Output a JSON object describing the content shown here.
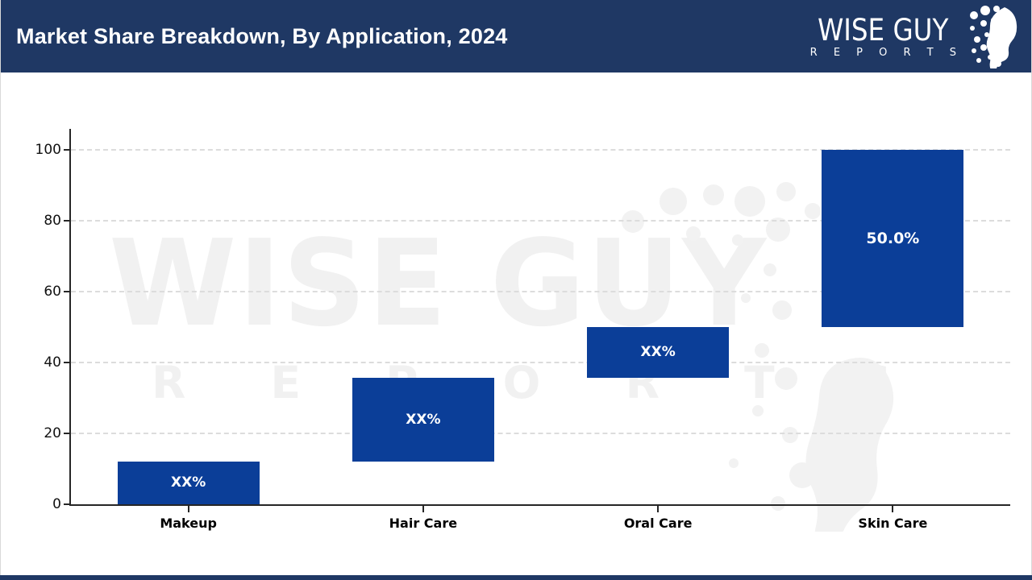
{
  "header": {
    "title": "Market Share Breakdown, By Application, 2024",
    "logo_line1": "WISE GUY",
    "logo_line2": "R E P O R T S"
  },
  "watermark": {
    "line1": "WISE GUY",
    "line2": "R E P O R T S"
  },
  "chart_data": {
    "type": "bar",
    "subtype": "waterfall",
    "title": "Market Share Breakdown, By Application, 2024",
    "categories": [
      "Makeup",
      "Hair Care",
      "Oral Care",
      "Skin Care"
    ],
    "segments": [
      {
        "start": 0,
        "end": 12
      },
      {
        "start": 12,
        "end": 35.7
      },
      {
        "start": 35.7,
        "end": 50
      },
      {
        "start": 50,
        "end": 100
      }
    ],
    "bar_labels": [
      "XX%",
      "XX%",
      "XX%",
      "50.0%"
    ],
    "xlabel": "",
    "ylabel": "",
    "ylim": [
      0,
      106
    ],
    "yticks": [
      0,
      20,
      40,
      60,
      80,
      100
    ],
    "grid": "horizontal dashed",
    "legend": "none",
    "bar_color": "#0B3E98",
    "value_label_color": "#ffffff"
  },
  "colors": {
    "header_bg": "#1F3864",
    "footer_bg": "#1F3864",
    "grid": "#DCDCDC",
    "spine": "#262626",
    "watermark": "#F1F1F1",
    "bar": "#0B3E98"
  }
}
